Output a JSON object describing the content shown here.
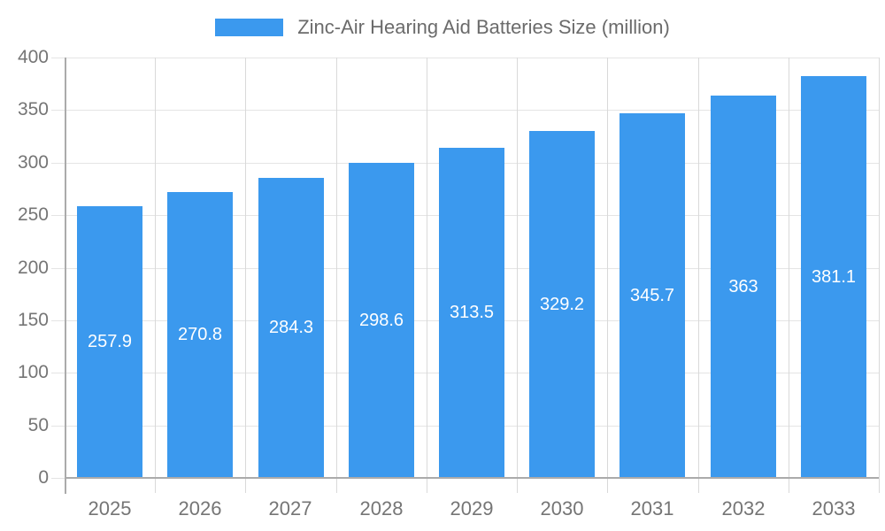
{
  "legend": {
    "label": "Zinc-Air Hearing Aid Batteries Size (million)"
  },
  "colors": {
    "bar": "#3b99ee",
    "bar_label_text": "#ffffff",
    "grid_h": "#e4e4e4",
    "grid_v": "#d9d9d9",
    "axis": "#ababab",
    "tick_text": "#757575",
    "title_text": "#6b6b6b",
    "background": "#ffffff"
  },
  "chart_data": {
    "type": "bar",
    "title": "Zinc-Air Hearing Aid Batteries Size (million)",
    "categories": [
      "2025",
      "2026",
      "2027",
      "2028",
      "2029",
      "2030",
      "2031",
      "2032",
      "2033"
    ],
    "values": [
      257.9,
      270.8,
      284.3,
      298.6,
      313.5,
      329.2,
      345.7,
      363,
      381.1
    ],
    "value_labels": [
      "257.9",
      "270.8",
      "284.3",
      "298.6",
      "313.5",
      "329.2",
      "345.7",
      "363",
      "381.1"
    ],
    "ytick_labels": [
      "0",
      "50",
      "100",
      "150",
      "200",
      "250",
      "300",
      "350",
      "400"
    ],
    "xlabel": "",
    "ylabel": "",
    "ylim": [
      0,
      400
    ],
    "ytick_step": 50,
    "grid": true,
    "legend_position": "top",
    "value_label_position": "inside-center"
  }
}
